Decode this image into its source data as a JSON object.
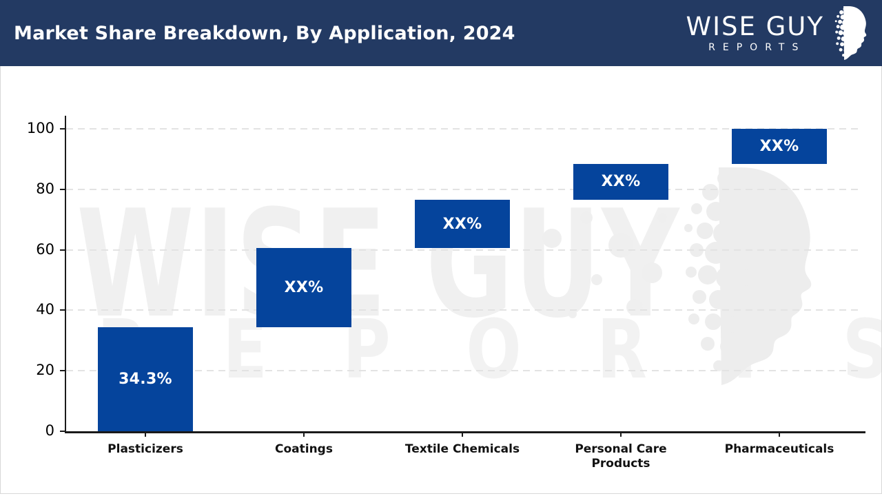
{
  "header": {
    "title": "Market Share Breakdown, By Application, 2024",
    "logo": {
      "line1": "WISE GUY",
      "line2": "REPORTS"
    }
  },
  "watermark": {
    "line1": "WISE GUY",
    "line2": "R E P O R T S"
  },
  "colors": {
    "header_bg": "#233A63",
    "bar": "#05449C",
    "bar_label": "#ffffff",
    "grid": "#e3e3e3",
    "axis": "#1a1a1a",
    "watermark": "#f0f0f0"
  },
  "chart_data": {
    "type": "bar",
    "variant": "waterfall",
    "title": "Market Share Breakdown, By Application, 2024",
    "categories": [
      "Plasticizers",
      "Coatings",
      "Textile Chemicals",
      "Personal Care Products",
      "Pharmaceuticals"
    ],
    "segments": [
      {
        "category": "Plasticizers",
        "start": 0,
        "end": 34.3,
        "label": "34.3%"
      },
      {
        "category": "Coatings",
        "start": 34.3,
        "end": 60.5,
        "label": "XX%"
      },
      {
        "category": "Textile Chemicals",
        "start": 60.5,
        "end": 76.6,
        "label": "XX%"
      },
      {
        "category": "Personal Care Products",
        "start": 76.6,
        "end": 88.4,
        "label": "XX%"
      },
      {
        "category": "Pharmaceuticals",
        "start": 88.4,
        "end": 100,
        "label": "XX%"
      }
    ],
    "xlabel": "",
    "ylabel": "",
    "ylim": [
      0,
      100
    ],
    "yticks": [
      0,
      20,
      40,
      60,
      80,
      100
    ],
    "grid": "dashed-horizontal",
    "legend": "none"
  }
}
